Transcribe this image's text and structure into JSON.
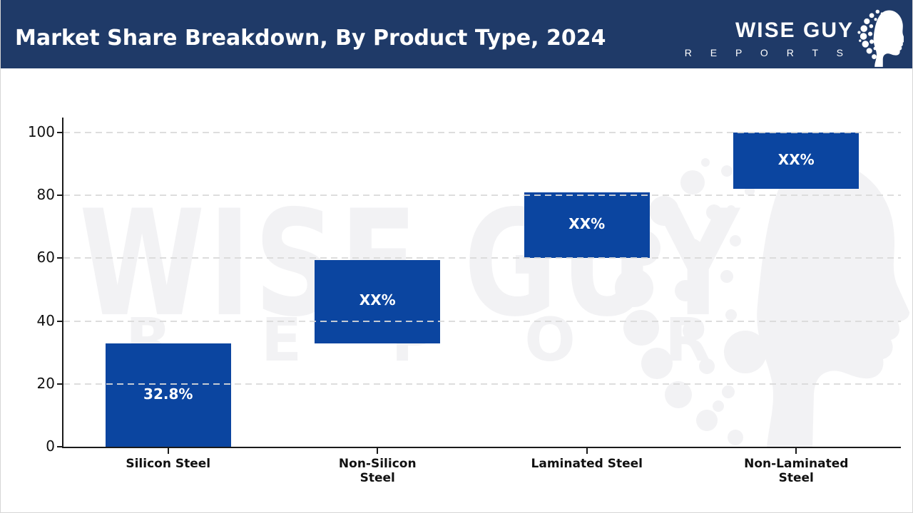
{
  "header": {
    "title": "Market Share Breakdown, By Product Type, 2024",
    "bg_color": "#1f3a68",
    "logo": {
      "line1": "WISE GUY",
      "line2": "R E P O R T S"
    }
  },
  "watermark": {
    "line1": "WISE GUY",
    "line2": "R E P O R T S",
    "color": "#f2f2f4"
  },
  "chart_data": {
    "type": "bar",
    "subtype": "waterfall-floating-bars",
    "title": "Market Share Breakdown, By Product Type, 2024",
    "xlabel": "",
    "ylabel": "",
    "categories": [
      "Silicon Steel",
      "Non-Silicon Steel",
      "Laminated Steel",
      "Non-Laminated Steel"
    ],
    "segments": [
      {
        "category": "Silicon Steel",
        "start": 0,
        "end": 32.8,
        "label": "32.8%"
      },
      {
        "category": "Non-Silicon Steel",
        "start": 32.8,
        "end": 59.5,
        "label": "XX%"
      },
      {
        "category": "Laminated Steel",
        "start": 60,
        "end": 81,
        "label": "XX%"
      },
      {
        "category": "Non-Laminated Steel",
        "start": 82,
        "end": 100,
        "label": "XX%"
      }
    ],
    "y_ticks": [
      0,
      20,
      40,
      60,
      80,
      100
    ],
    "ylim": [
      0,
      104
    ],
    "grid": "horizontal dashed, drawn above bars",
    "legend": "none",
    "bar_color": "#0b45a0",
    "label_color": "#ffffff",
    "grid_color": "#d9d9d9",
    "axis_color": "#1a1a1a"
  }
}
